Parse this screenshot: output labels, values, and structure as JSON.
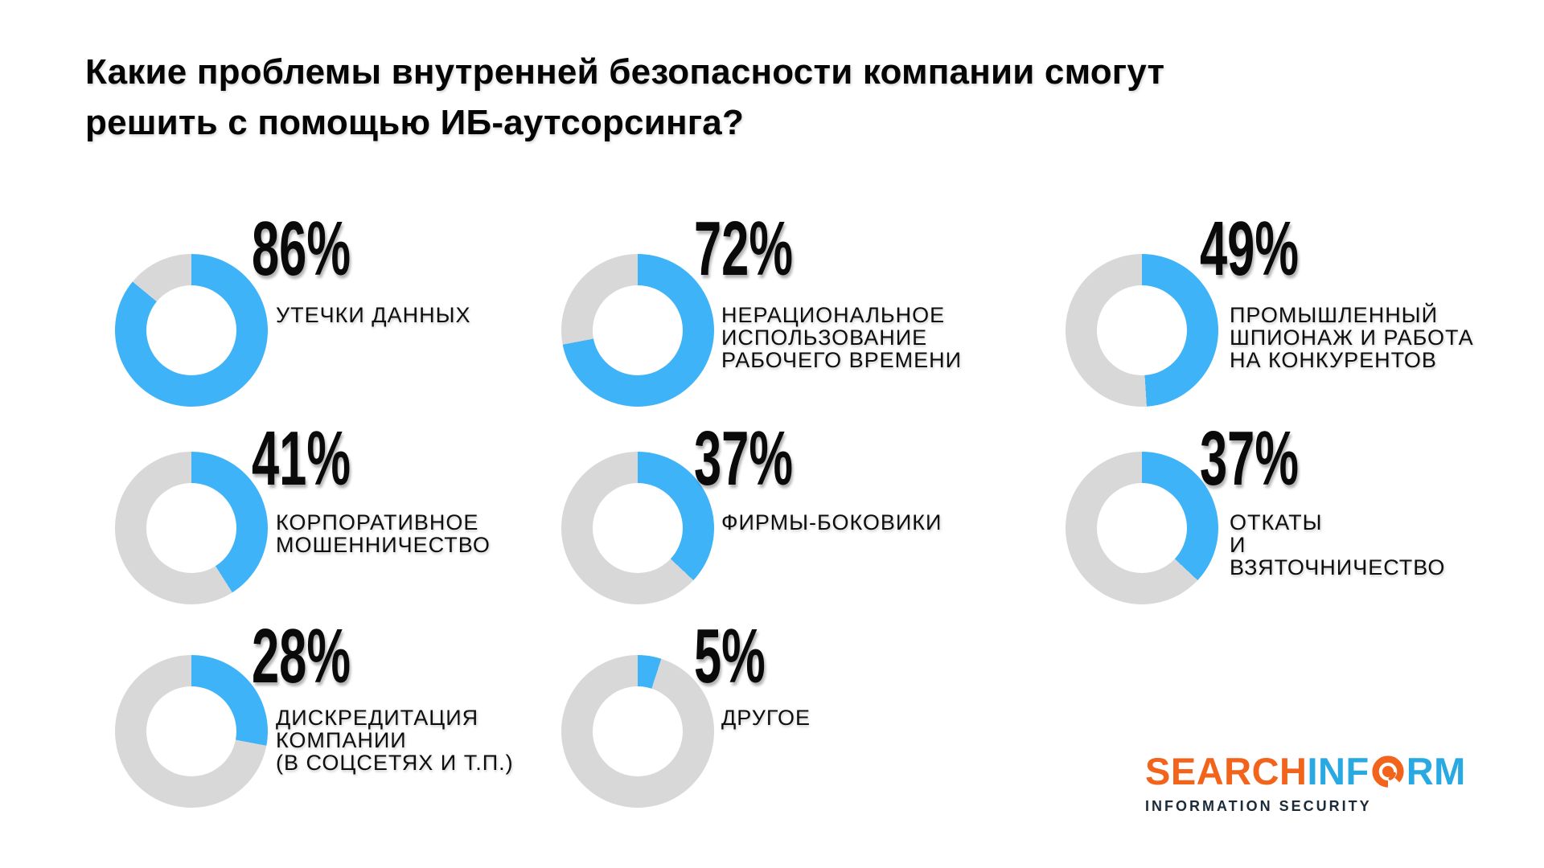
{
  "title": {
    "line1": "Какие проблемы внутренней безопасности компании смогут",
    "line2": "решить с помощью ИБ-аутсорсинга?"
  },
  "chart_data": {
    "type": "pie",
    "subtype": "donut-grid",
    "title": "Какие проблемы внутренней безопасности компании смогут решить с помощью ИБ-аутсорсинга?",
    "unit": "%",
    "items": [
      {
        "value": 86,
        "pct": "86%",
        "label": "УТЕЧКИ ДАННЫХ",
        "label_lines": [
          "УТЕЧКИ ДАННЫХ"
        ]
      },
      {
        "value": 72,
        "pct": "72%",
        "label": "НЕРАЦИОНАЛЬНОЕ ИСПОЛЬЗОВАНИЕ РАБОЧЕГО ВРЕМЕНИ",
        "label_lines": [
          "НЕРАЦИОНАЛЬНОЕ",
          "ИСПОЛЬЗОВАНИЕ",
          "РАБОЧЕГО ВРЕМЕНИ"
        ]
      },
      {
        "value": 49,
        "pct": "49%",
        "label": "ПРОМЫШЛЕННЫЙ ШПИОНАЖ И РАБОТА НА КОНКУРЕНТОВ",
        "label_lines": [
          "ПРОМЫШЛЕННЫЙ",
          "ШПИОНАЖ И РАБОТА",
          "НА КОНКУРЕНТОВ"
        ]
      },
      {
        "value": 41,
        "pct": "41%",
        "label": "КОРПОРАТИВНОЕ МОШЕННИЧЕСТВО",
        "label_lines": [
          "КОРПОРАТИВНОЕ",
          "МОШЕННИЧЕСТВО"
        ]
      },
      {
        "value": 37,
        "pct": "37%",
        "label": "ФИРМЫ-БОКОВИКИ",
        "label_lines": [
          "ФИРМЫ-БОКОВИКИ"
        ]
      },
      {
        "value": 37,
        "pct": "37%",
        "label": "ОТКАТЫ И ВЗЯТОЧНИЧЕСТВО",
        "label_lines": [
          "ОТКАТЫ",
          "И",
          "ВЗЯТОЧНИЧЕСТВО"
        ]
      },
      {
        "value": 28,
        "pct": "28%",
        "label": "ДИСКРЕДИТАЦИЯ КОМПАНИИ (В СОЦСЕТЯХ И Т.П.)",
        "label_lines": [
          "ДИСКРЕДИТАЦИЯ",
          "КОМПАНИИ",
          "(В СОЦСЕТЯХ И Т.П.)"
        ]
      },
      {
        "value": 5,
        "pct": "5%",
        "label": "ДРУГОЕ",
        "label_lines": [
          "ДРУГОЕ"
        ]
      }
    ],
    "legend": "none",
    "colors": {
      "slice_filled": "#3FB3F8",
      "slice_rest": "#D8D8D8",
      "value_text": "#0A0A0A",
      "label_text": "#0E0E0E"
    }
  },
  "logo": {
    "search": "SEARCH",
    "inf": "INF",
    "rm": "RM",
    "o_icon": "orange-ring-dot",
    "tagline": "INFORMATION SECURITY",
    "colors": {
      "orange": "#F2641C",
      "blue": "#29A9E1",
      "tagline": "#1C2B39"
    }
  }
}
